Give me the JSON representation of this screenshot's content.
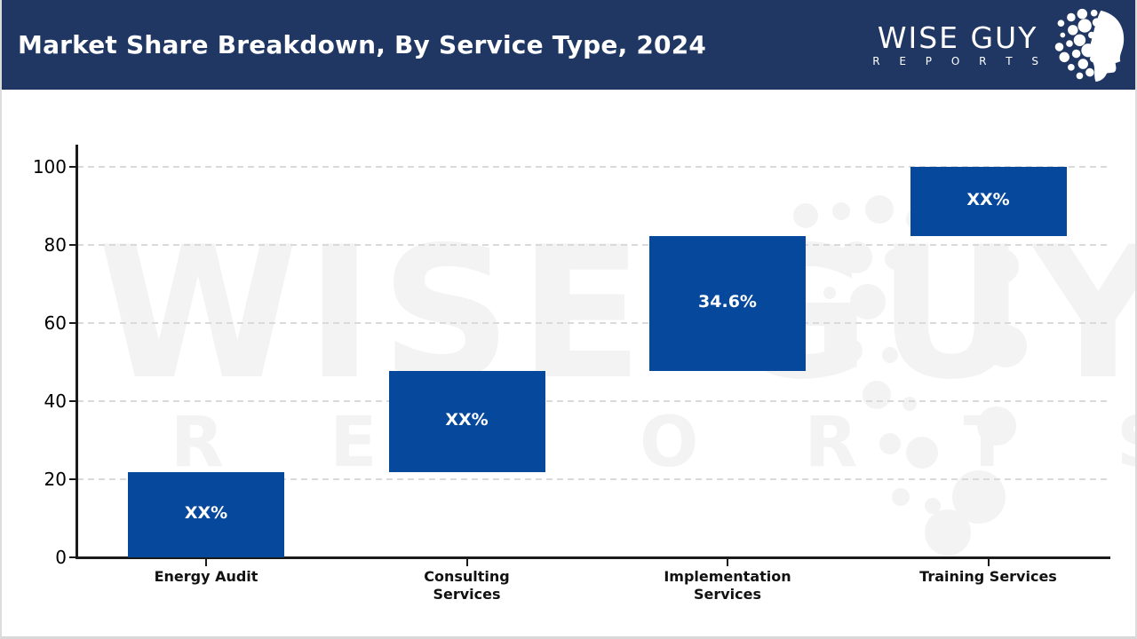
{
  "header": {
    "title": "Market Share Breakdown, By Service Type, 2024",
    "bg_color": "#203764",
    "logo": {
      "wordmark": "WISE GUY",
      "subtext": "R E P O R T S"
    }
  },
  "watermark": {
    "line1": "WISE GUY",
    "line2": "R E P O R T S"
  },
  "chart_data": {
    "type": "bar",
    "variant": "waterfall",
    "title": "Market Share Breakdown, By Service Type, 2024",
    "categories": [
      "Energy Audit",
      "Consulting Services",
      "Implementation Services",
      "Training Services"
    ],
    "category_lines": [
      [
        "Energy Audit"
      ],
      [
        "Consulting",
        "Services"
      ],
      [
        "Implementation",
        "Services"
      ],
      [
        "Training Services"
      ]
    ],
    "segments": [
      {
        "category": "Energy Audit",
        "start": 0,
        "end": 21.8,
        "label": "XX%"
      },
      {
        "category": "Consulting Services",
        "start": 21.8,
        "end": 47.7,
        "label": "XX%"
      },
      {
        "category": "Implementation Services",
        "start": 47.7,
        "end": 82.3,
        "label": "34.6%"
      },
      {
        "category": "Training Services",
        "start": 82.3,
        "end": 100,
        "label": "XX%"
      }
    ],
    "yticks": [
      0,
      20,
      40,
      60,
      80,
      100
    ],
    "ylim": [
      0,
      106
    ],
    "xlabel": "",
    "ylabel": "",
    "legend": "none",
    "grid": {
      "horizontal": true,
      "style": "dashed",
      "color": "#d9d9d9"
    },
    "bar_color": "#06489b",
    "bar_label_color": "#ffffff"
  }
}
